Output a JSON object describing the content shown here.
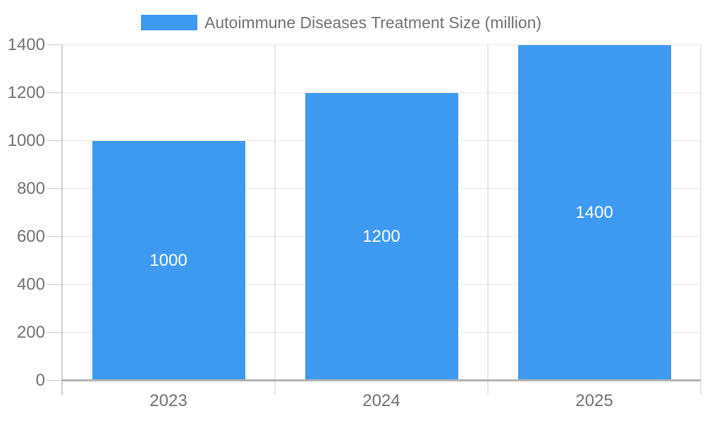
{
  "chart": {
    "legend": {
      "label": "Autoimmune Diseases Treatment Size (million)"
    }
  },
  "colors": {
    "bar": "#3D9AF0",
    "bar_label_text": "#FFFFFF",
    "grid_line": "#E7E7E7",
    "grid_tick_below_axis": "#E2E2E2",
    "y_tick_line": "#CCCCCC",
    "y_axis_line": "#CCCCCC",
    "x_baseline": "#B3B3B3",
    "label_text": "#717171",
    "background": "#FFFFFF"
  },
  "chart_data": {
    "type": "bar",
    "title": "",
    "xlabel": "",
    "ylabel": "",
    "categories": [
      "2023",
      "2024",
      "2025"
    ],
    "series": [
      {
        "name": "Autoimmune Diseases Treatment Size (million)",
        "values": [
          1000,
          1200,
          1400
        ]
      }
    ],
    "bar_value_labels": [
      "1000",
      "1200",
      "1400"
    ],
    "ylim": [
      0,
      1400
    ],
    "yticks": [
      0,
      200,
      400,
      600,
      800,
      1000,
      1200,
      1400
    ],
    "grid": true,
    "legend_position": "top-center"
  }
}
